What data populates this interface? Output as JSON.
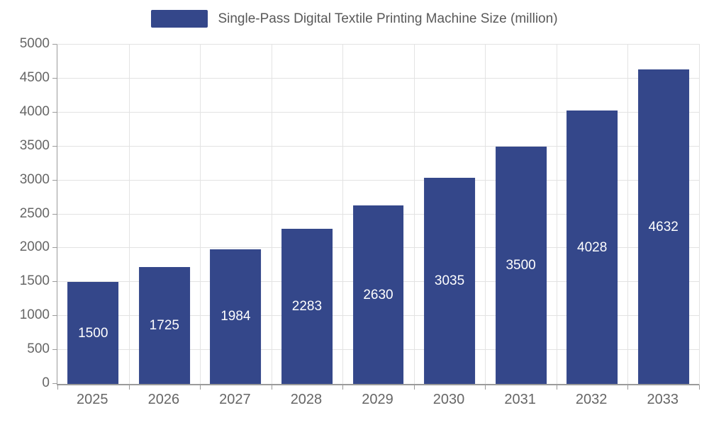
{
  "chart_data": {
    "type": "bar",
    "title": "Single-Pass Digital Textile Printing Machine Size (million)",
    "categories": [
      "2025",
      "2026",
      "2027",
      "2028",
      "2029",
      "2030",
      "2031",
      "2032",
      "2033"
    ],
    "values": [
      1500,
      1725,
      1984,
      2283,
      2630,
      3035,
      3500,
      4028,
      4632
    ],
    "xlabel": "",
    "ylabel": "",
    "ylim": [
      0,
      5000
    ],
    "ytick_step": 500,
    "grid": true,
    "legend_position": "top",
    "colors": {
      "bar": "#34478A",
      "bar_value_label": "#ffffff",
      "axis_text": "#666666",
      "legend_text": "#595959",
      "gridline": "#e3e3e3",
      "axis_line": "#9b9b9b"
    }
  }
}
